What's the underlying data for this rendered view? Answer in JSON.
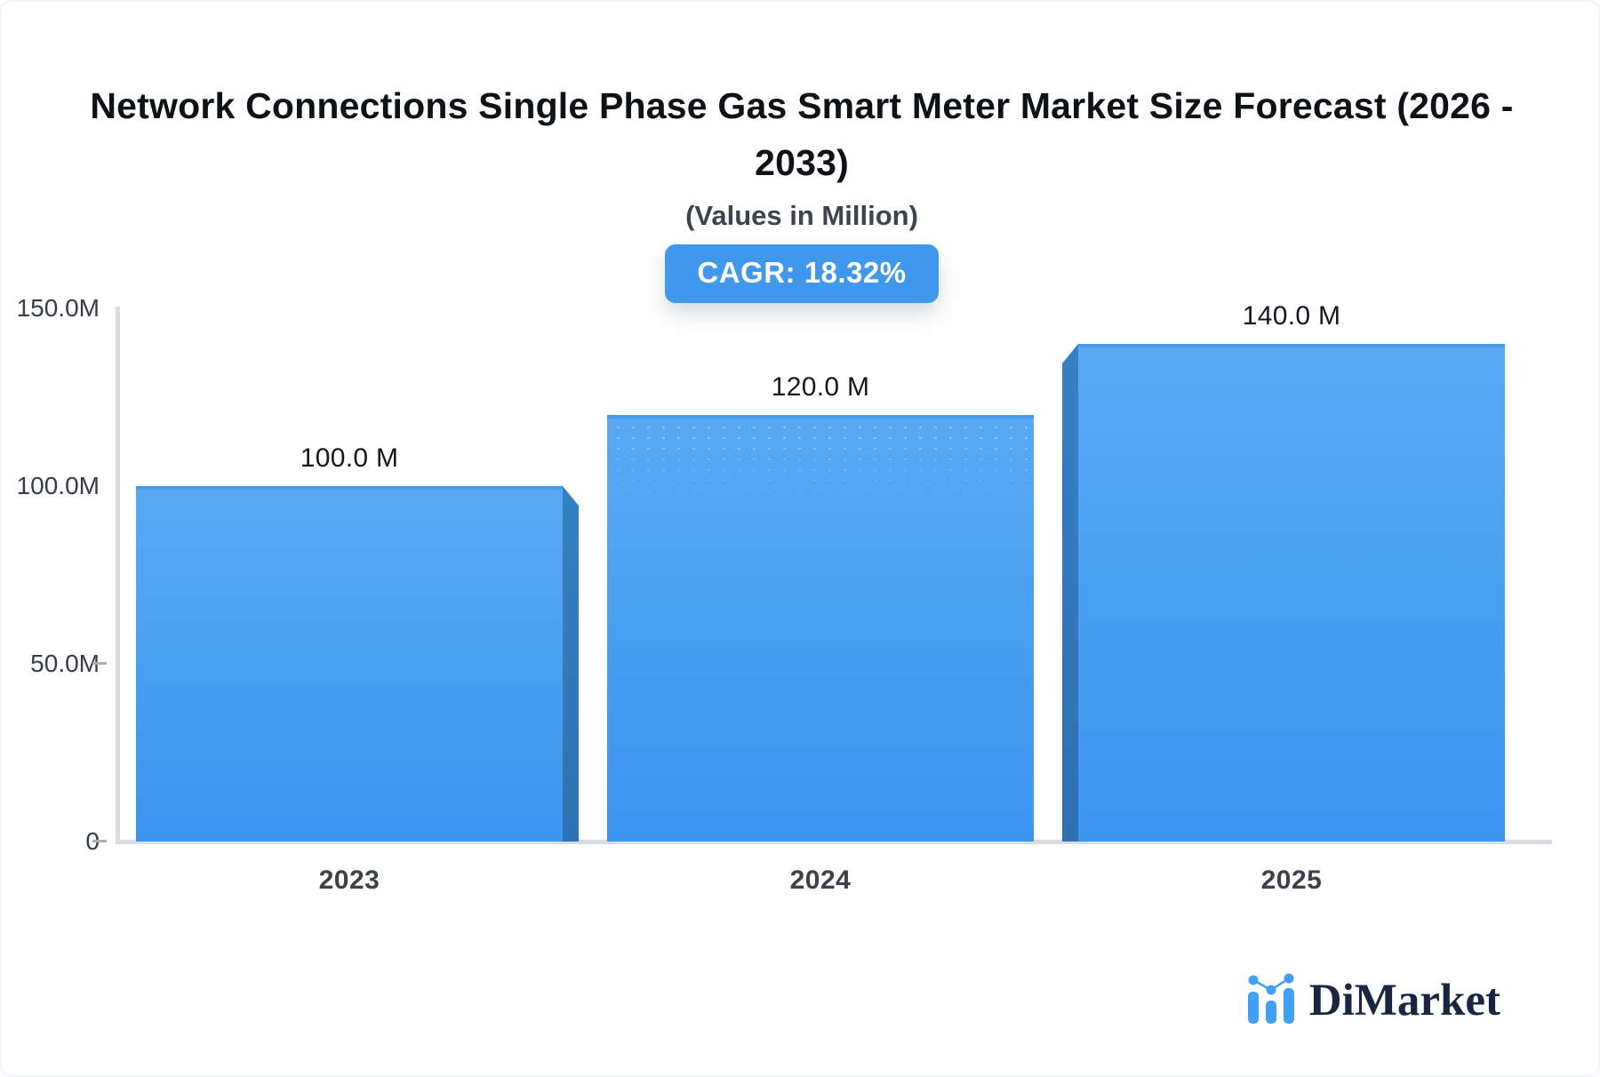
{
  "header": {
    "title": "Network Connections Single Phase Gas Smart Meter Market Size Forecast (2026 - 2033)",
    "subtitle": "(Values in Million)",
    "cagr_label": "CAGR: 18.32%"
  },
  "chart_data": {
    "type": "bar",
    "title": "Network Connections Single Phase Gas Smart Meter Market Size Forecast (2026 - 2033)",
    "subtitle": "(Values in Million)",
    "cagr_percent": 18.32,
    "categories": [
      "2023",
      "2024",
      "2025"
    ],
    "values": [
      100.0,
      120.0,
      140.0
    ],
    "value_labels": [
      "100.0 M",
      "120.0 M",
      "140.0 M"
    ],
    "unit": "Million",
    "ylim": [
      0,
      150
    ],
    "yticks": [
      {
        "label": "0",
        "value": 0,
        "tick_mark": true
      },
      {
        "label": "50.0M",
        "value": 50,
        "tick_mark": true
      },
      {
        "label": "100.0M",
        "value": 100,
        "tick_mark": false
      },
      {
        "label": "150.0M",
        "value": 150,
        "tick_mark": false
      }
    ],
    "grid": false,
    "legend": "none",
    "bar_3d_sides": [
      "right",
      "none",
      "left"
    ],
    "top_dot_pattern": [
      false,
      true,
      false
    ],
    "colors": {
      "bar_top": "#58a9f2",
      "bar_bottom": "#3b94f0",
      "bar_side_3d": "#2f78bb",
      "badge_background": "#3f98eb",
      "axis_line": "#d9dce2",
      "label_text": "#15181d"
    }
  },
  "footer": {
    "logo_text": "DiMarket"
  }
}
